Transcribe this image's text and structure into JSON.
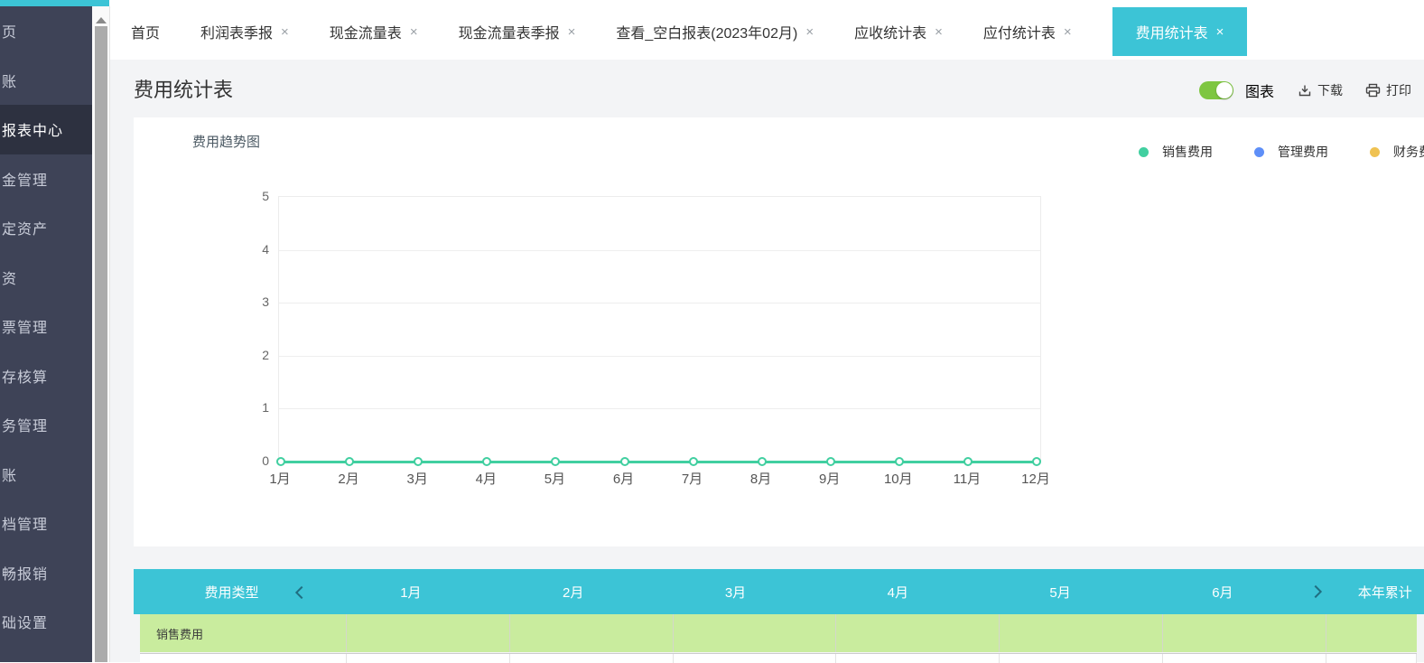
{
  "colors": {
    "accent_cyan": "#3cc4d6",
    "sidebar_bg": "#3e4357",
    "sidebar_active_bg": "#2d3140",
    "toggle_green": "#7ec641",
    "table_row_green": "#c9ec9e",
    "series_green": "#41cfa0",
    "series_blue": "#5e8ff8",
    "series_yellow": "#efc252"
  },
  "sidebar": {
    "items": [
      {
        "label": "页",
        "active": false
      },
      {
        "label": "账",
        "active": false
      },
      {
        "label": "报表中心",
        "active": true
      },
      {
        "label": "金管理",
        "active": false
      },
      {
        "label": "定资产",
        "active": false
      },
      {
        "label": "资",
        "active": false
      },
      {
        "label": "票管理",
        "active": false
      },
      {
        "label": "存核算",
        "active": false
      },
      {
        "label": "务管理",
        "active": false
      },
      {
        "label": "账",
        "active": false
      },
      {
        "label": "档管理",
        "active": false
      },
      {
        "label": "畅报销",
        "active": false
      },
      {
        "label": "础设置",
        "active": false
      }
    ]
  },
  "tabbar": {
    "tabs": [
      {
        "label": "首页",
        "closable": false,
        "active": false
      },
      {
        "label": "利润表季报",
        "closable": true,
        "active": false
      },
      {
        "label": "现金流量表",
        "closable": true,
        "active": false
      },
      {
        "label": "现金流量表季报",
        "closable": true,
        "active": false
      },
      {
        "label": "查看_空白报表(2023年02月)",
        "closable": true,
        "active": false
      },
      {
        "label": "应收统计表",
        "closable": true,
        "active": false
      },
      {
        "label": "应付统计表",
        "closable": true,
        "active": false
      },
      {
        "label": "费用统计表",
        "closable": true,
        "active": true
      }
    ],
    "close_glyph": "×"
  },
  "page": {
    "title": "费用统计表"
  },
  "toolbar": {
    "chart_toggle_label": "图表",
    "chart_toggle_on": true,
    "download_label": "下载",
    "print_label": "打印"
  },
  "chart_data": {
    "type": "line",
    "title": "费用趋势图",
    "x": [
      "1月",
      "2月",
      "3月",
      "4月",
      "5月",
      "6月",
      "7月",
      "8月",
      "9月",
      "10月",
      "11月",
      "12月"
    ],
    "series": [
      {
        "name": "销售费用",
        "color": "#41cfa0",
        "values": [
          0,
          0,
          0,
          0,
          0,
          0,
          0,
          0,
          0,
          0,
          0,
          0
        ]
      },
      {
        "name": "管理费用",
        "color": "#5e8ff8"
      },
      {
        "name": "财务费用",
        "color": "#efc252"
      }
    ],
    "ylim": [
      0,
      5
    ],
    "yticks": [
      0,
      1,
      2,
      3,
      4,
      5
    ],
    "grid": true,
    "legend_position": "top-right"
  },
  "table": {
    "header": {
      "type_col": "费用类型",
      "months": [
        "1月",
        "2月",
        "3月",
        "4月",
        "5月",
        "6月"
      ],
      "total_col": "本年累计"
    },
    "rows": [
      {
        "type": "销售费用",
        "values": [
          "",
          "",
          "",
          "",
          "",
          ""
        ],
        "total": ""
      }
    ]
  }
}
